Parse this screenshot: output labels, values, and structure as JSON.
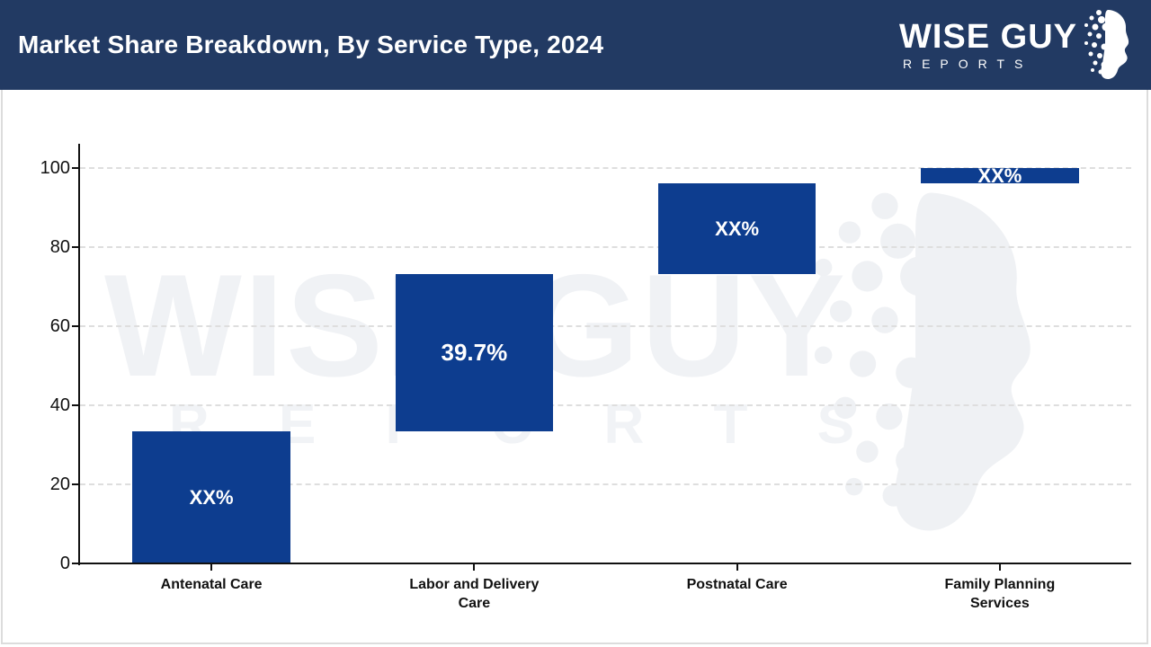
{
  "header": {
    "title": "Market Share Breakdown, By Service Type, 2024",
    "logo": {
      "line1": "WISE GUY",
      "line2": "REPORTS"
    }
  },
  "watermark": {
    "line1": "WISE GUY",
    "line2": "R E P O R T S"
  },
  "chart_data": {
    "type": "bar",
    "subtype": "floating-waterfall",
    "title": "Market Share Breakdown, By Service Type, 2024",
    "categories": [
      "Antenatal Care",
      "Labor and Delivery Care",
      "Postnatal Care",
      "Family Planning Services"
    ],
    "bars": [
      {
        "category_display": "Antenatal Care",
        "start": 0,
        "end": 33.4,
        "label": "XX%",
        "label_style": "normal"
      },
      {
        "category_display": "Labor and Delivery\nCare",
        "start": 33.4,
        "end": 73.1,
        "label": "39.7%",
        "label_style": "big"
      },
      {
        "category_display": "Postnatal Care",
        "start": 73.1,
        "end": 96.1,
        "label": "XX%",
        "label_style": "normal"
      },
      {
        "category_display": "Family Planning\nServices",
        "start": 96.1,
        "end": 100,
        "label": "XX%",
        "label_style": "normal"
      }
    ],
    "xlabel": "",
    "ylabel": "",
    "ylim": [
      0,
      100
    ],
    "yticks": [
      0,
      20,
      40,
      60,
      80,
      100
    ],
    "grid": true,
    "legend": false,
    "colors": {
      "bar": "#0d3d8f",
      "bar_label": "#ffffff",
      "header_bg": "#223a63",
      "gridline": "#dedede",
      "axis": "#111111",
      "watermark": "#f0f2f5",
      "frame_border": "#dcdcdc"
    }
  }
}
